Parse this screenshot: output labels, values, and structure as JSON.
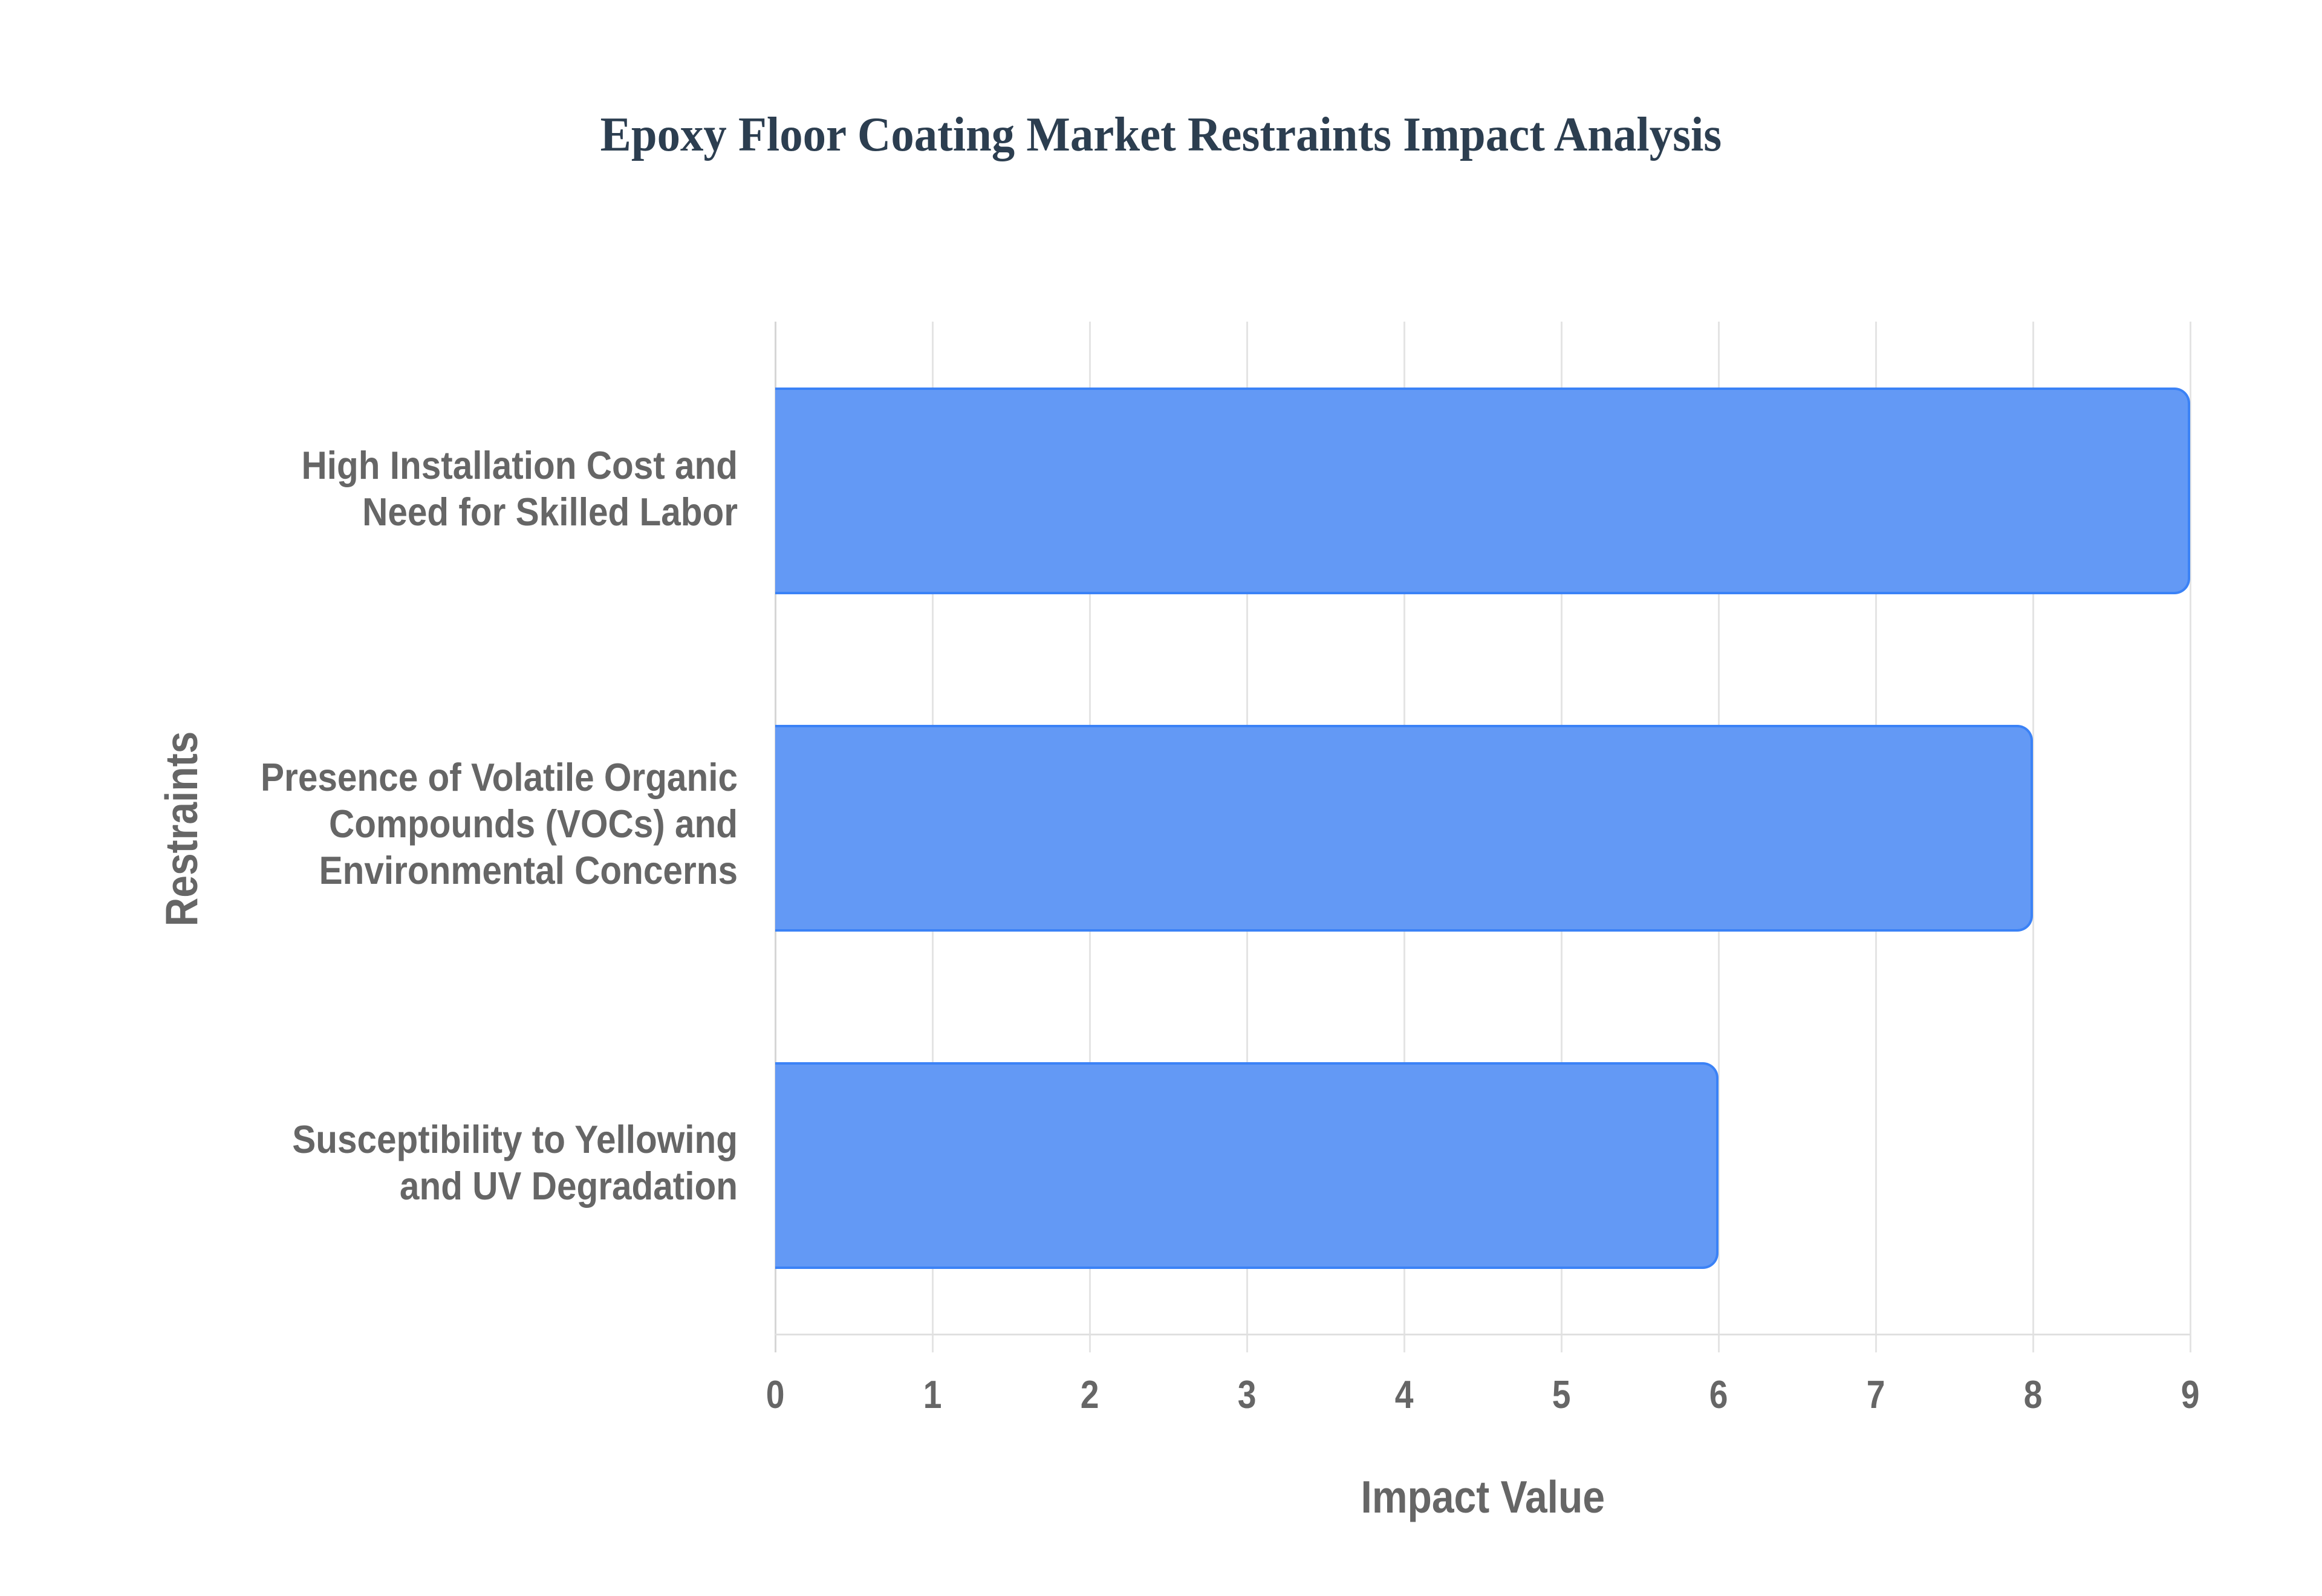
{
  "title": "Epoxy Floor Coating Market Restraints Impact Analysis",
  "colors": {
    "title": "#2c3e50",
    "bar_fill": "#6399f5",
    "bar_border": "#3b82f6",
    "axis_text": "#666666",
    "grid": "#e4e4e4"
  },
  "axes": {
    "x_label": "Impact Value",
    "y_label": "Restraints",
    "x_ticks": [
      "0",
      "1",
      "2",
      "3",
      "4",
      "5",
      "6",
      "7",
      "8",
      "9"
    ]
  },
  "categories": [
    {
      "lines": [
        "High Installation Cost and",
        "Need for Skilled Labor"
      ],
      "value": 9
    },
    {
      "lines": [
        "Presence of Volatile Organic",
        "Compounds (VOCs) and",
        "Environmental Concerns"
      ],
      "value": 8
    },
    {
      "lines": [
        "Susceptibility to Yellowing",
        "and UV Degradation"
      ],
      "value": 6
    }
  ],
  "chart_data": {
    "type": "bar",
    "orientation": "horizontal",
    "title": "Epoxy Floor Coating Market Restraints Impact Analysis",
    "categories": [
      "High Installation Cost and Need for Skilled Labor",
      "Presence of Volatile Organic Compounds (VOCs) and Environmental Concerns",
      "Susceptibility to Yellowing and UV Degradation"
    ],
    "values": [
      9,
      8,
      6
    ],
    "xlabel": "Impact Value",
    "ylabel": "Restraints",
    "xlim": [
      0,
      9
    ],
    "x_ticks": [
      0,
      1,
      2,
      3,
      4,
      5,
      6,
      7,
      8,
      9
    ],
    "grid": {
      "vertical": true,
      "horizontal": false
    },
    "legend": null
  }
}
